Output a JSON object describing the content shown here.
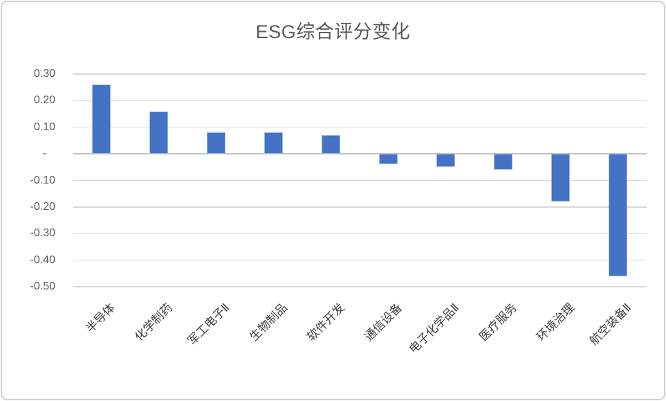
{
  "chart": {
    "accent_color": "#4472C4",
    "gridline_color": "#d9d9d9",
    "zero_axis_color": "#c3c3c3",
    "title_color": "#595959",
    "tick_color": "#595959",
    "category_color": "#404040",
    "frame_color": "#d2d2d2",
    "background": "#ffffff"
  },
  "chart_data": {
    "type": "bar",
    "title": "ESG综合评分变化",
    "categories": [
      "半导体",
      "化学制药",
      "军工电子Ⅱ",
      "生物制品",
      "软件开发",
      "通信设备",
      "电子化学品Ⅱ",
      "医疗服务",
      "环境治理",
      "航空装备Ⅱ"
    ],
    "values": [
      0.26,
      0.16,
      0.08,
      0.08,
      0.07,
      -0.04,
      -0.05,
      -0.06,
      -0.18,
      -0.46
    ],
    "xlabel": "",
    "ylabel": "",
    "ylim": [
      -0.5,
      0.3
    ],
    "y_tick_labels": [
      "0.30",
      "0.20",
      "0.10",
      "-",
      "-0.10",
      "-0.20",
      "-0.30",
      "-0.40",
      "-0.50"
    ],
    "y_tick_values": [
      0.3,
      0.2,
      0.1,
      0,
      -0.1,
      -0.2,
      -0.3,
      -0.4,
      -0.5
    ],
    "grid": true,
    "legend": false,
    "bar_color": "#4472C4",
    "category_label_rotation_deg": 45
  }
}
